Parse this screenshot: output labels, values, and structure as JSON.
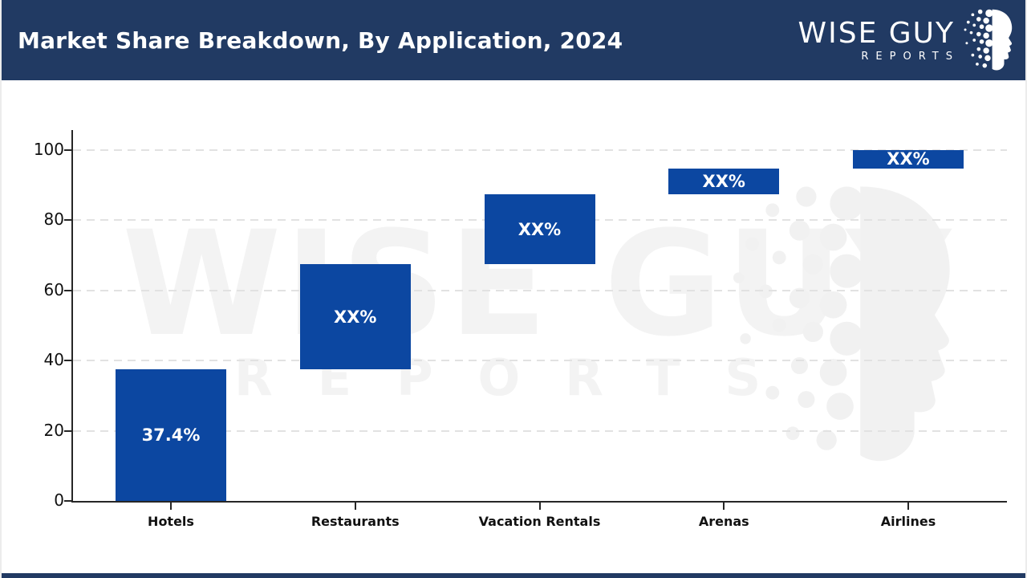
{
  "header": {
    "title": "Market Share Breakdown, By Application, 2024",
    "logo": {
      "line1": "WISE GUY",
      "line2": "REPORTS"
    }
  },
  "watermark": {
    "line1": "WISE GUY",
    "line2": "REPORTS"
  },
  "chart_data": {
    "type": "bar",
    "subtype": "waterfall",
    "title": "Market Share Breakdown, By Application, 2024",
    "categories": [
      "Hotels",
      "Restaurants",
      "Vacation Rentals",
      "Arenas",
      "Airlines"
    ],
    "segments": [
      {
        "category": "Hotels",
        "start": 0,
        "end": 37.4,
        "label": "37.4%"
      },
      {
        "category": "Restaurants",
        "start": 37.4,
        "end": 67.4,
        "label": "XX%"
      },
      {
        "category": "Vacation Rentals",
        "start": 67.4,
        "end": 87.3,
        "label": "XX%"
      },
      {
        "category": "Arenas",
        "start": 87.3,
        "end": 94.6,
        "label": "XX%"
      },
      {
        "category": "Airlines",
        "start": 94.6,
        "end": 100,
        "label": "XX%"
      }
    ],
    "yticks": [
      0,
      20,
      40,
      60,
      80,
      100
    ],
    "ylim": [
      0,
      105
    ],
    "xlabel": "",
    "ylabel": "",
    "grid": "dashed-horizontal",
    "legend": "none",
    "bar_color": "#0c47a1",
    "bar_label_color": "#ffffff"
  },
  "colors": {
    "header_bg": "#213a63",
    "bar": "#0c47a1",
    "axis": "#262626",
    "grid": "#e2e2e2",
    "tick_label": "#111111",
    "watermark": "#f3f3f3"
  }
}
